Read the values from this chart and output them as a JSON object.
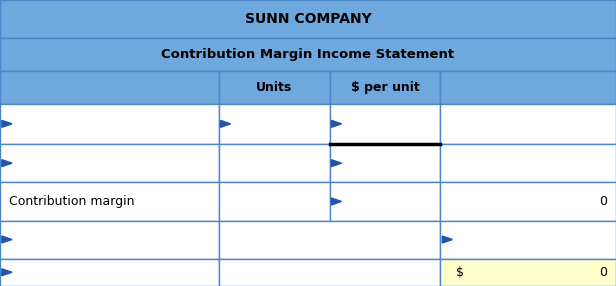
{
  "title1": "SUNN COMPANY",
  "title2": "Contribution Margin Income Statement",
  "col_headers": [
    "Units",
    "$ per unit"
  ],
  "header_bg": "#6FA8DC",
  "cell_bg_white": "#FFFFFF",
  "cell_bg_yellow": "#FFFFCC",
  "border_blue": "#4A86C8",
  "border_dark": "#333333",
  "tri_color": "#2255AA",
  "contribution_margin_label": "Contribution margin",
  "dollar_sign": "$",
  "value_0": "0",
  "fig_width": 6.16,
  "fig_height": 2.86,
  "c0": 0.0,
  "c1": 0.355,
  "c2": 0.535,
  "c3": 0.715,
  "c4": 1.0
}
